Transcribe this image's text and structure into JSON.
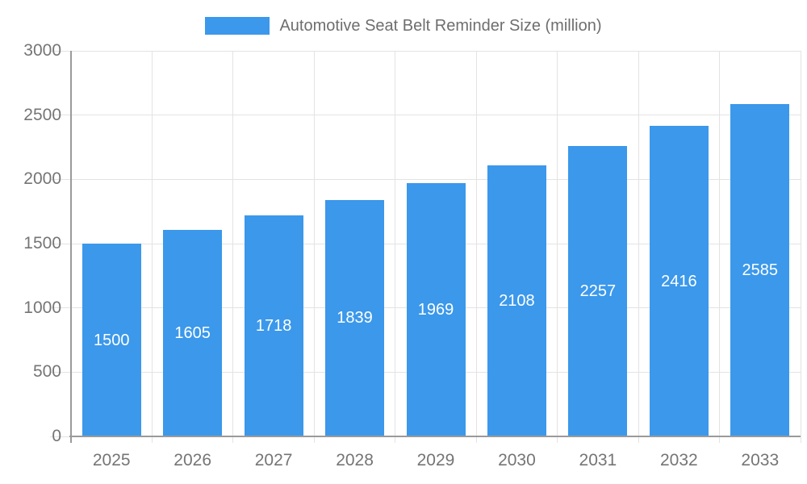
{
  "chart_data": {
    "type": "bar",
    "title": "",
    "legend": "Automotive Seat Belt Reminder Size (million)",
    "legend_position": "top",
    "categories": [
      "2025",
      "2026",
      "2027",
      "2028",
      "2029",
      "2030",
      "2031",
      "2032",
      "2033"
    ],
    "values": [
      1500,
      1605,
      1718,
      1839,
      1969,
      2108,
      2257,
      2416,
      2585
    ],
    "xlabel": "",
    "ylabel": "",
    "ylim": [
      0,
      3000
    ],
    "yticks": [
      0,
      500,
      1000,
      1500,
      2000,
      2500,
      3000
    ],
    "grid": true,
    "colors": {
      "bar": "#3B98EB",
      "grid": "#e3e3e3",
      "axis": "#9a9a9a",
      "tick_label": "#757575",
      "legend_label": "#6e6e6e",
      "bar_label": "#ffffff",
      "background": "#ffffff"
    }
  }
}
